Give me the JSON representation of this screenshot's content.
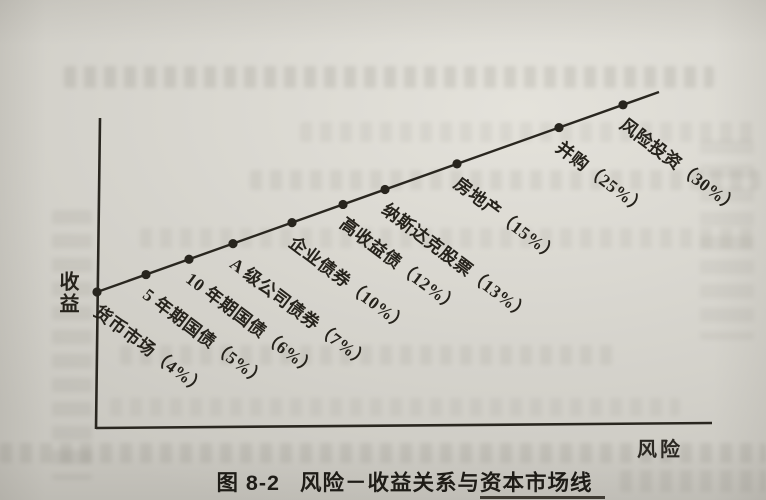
{
  "colors": {
    "ink": "#28251e",
    "paper": "#d8d6cf"
  },
  "axes": {
    "y_label": "收益",
    "x_label": "风险"
  },
  "caption": {
    "figure_number": "图 8-2",
    "title_plain": "风险－收益关系与",
    "title_underlined": "资本市场线"
  },
  "chart_data": {
    "type": "line",
    "title": "图 8-2 风险－收益关系与资本市场线",
    "xlabel": "风险",
    "ylabel": "收益",
    "grid": false,
    "axis_ticks_visible": false,
    "legend": null,
    "points": [
      {
        "label": "货币市场",
        "return_pct": 4
      },
      {
        "label": "5 年期国债",
        "return_pct": 5
      },
      {
        "label": "10 年期国债",
        "return_pct": 6
      },
      {
        "label": "A 级公司债券",
        "return_pct": 7
      },
      {
        "label": "企业债券",
        "return_pct": 10
      },
      {
        "label": "高收益债",
        "return_pct": 12
      },
      {
        "label": "纳斯达克股票",
        "return_pct": 13
      },
      {
        "label": "房地产",
        "return_pct": 15
      },
      {
        "label": "并购",
        "return_pct": 25
      },
      {
        "label": "风险投资",
        "return_pct": 30
      }
    ]
  }
}
